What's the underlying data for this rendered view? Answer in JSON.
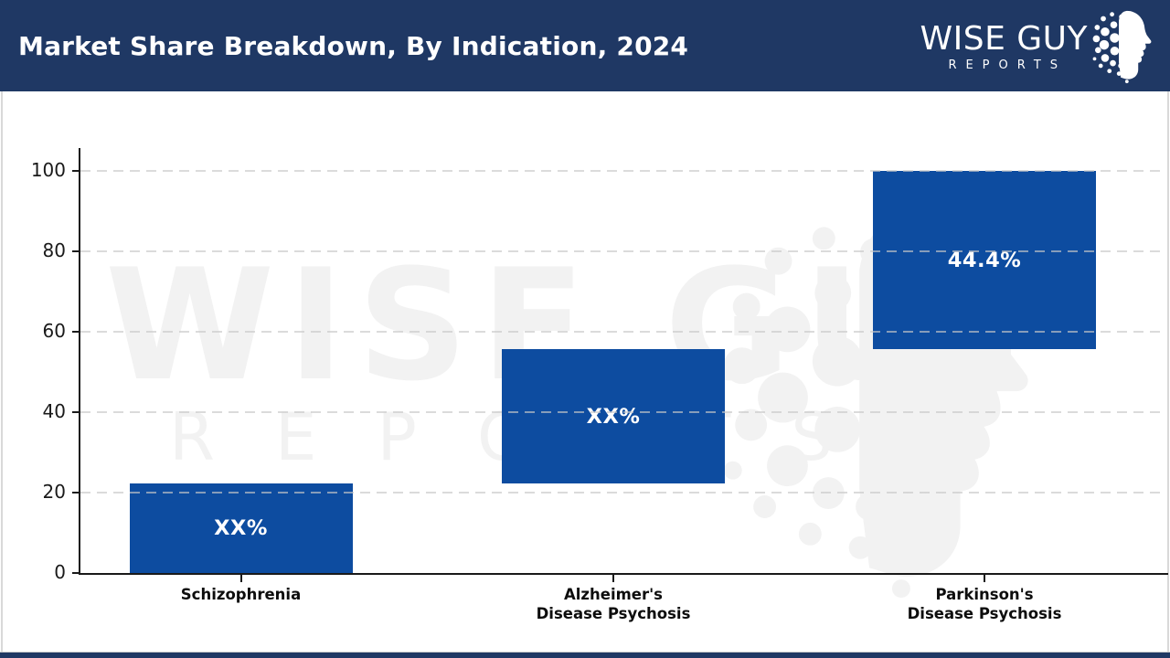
{
  "colors": {
    "navy": "#1f3864",
    "bar_blue": "#0d4ca0",
    "axis": "#1a1a1a",
    "grid": "#c8c8c8",
    "watermark": "#f2f2f2",
    "value_label_white": "#ffffff"
  },
  "header": {
    "title": "Market Share Breakdown, By Indication, 2024"
  },
  "logo": {
    "wordmark": "WISE GUY",
    "sub": "REPORTS"
  },
  "watermark": {
    "wordmark": "WISE GUY",
    "sub": "REPORTS"
  },
  "chart_data": {
    "type": "bar",
    "subtype": "waterfall",
    "title": "Market Share Breakdown, By Indication, 2024",
    "unit": "%",
    "categories": [
      "Schizophrenia",
      "Alzheimer's Disease Psychosis",
      "Parkinson's Disease Psychosis"
    ],
    "categories_lines": [
      [
        "Schizophrenia"
      ],
      [
        "Alzheimer's",
        "Disease Psychosis"
      ],
      [
        "Parkinson's",
        "Disease Psychosis"
      ]
    ],
    "segments": [
      {
        "category": "Schizophrenia",
        "start": 0,
        "end": 22.2,
        "value_label": "XX%"
      },
      {
        "category": "Alzheimer's Disease Psychosis",
        "start": 22.2,
        "end": 55.6,
        "value_label": "XX%"
      },
      {
        "category": "Parkinson's Disease Psychosis",
        "start": 55.6,
        "end": 100,
        "value_label": "44.4%"
      }
    ],
    "yticks": [
      0,
      20,
      40,
      60,
      80,
      100
    ],
    "ylim": [
      0,
      105
    ],
    "xlabel": "",
    "ylabel": "",
    "grid": "horizontal-dashed-over-bars",
    "legend": "none",
    "bar_color": "#0d4ca0"
  }
}
